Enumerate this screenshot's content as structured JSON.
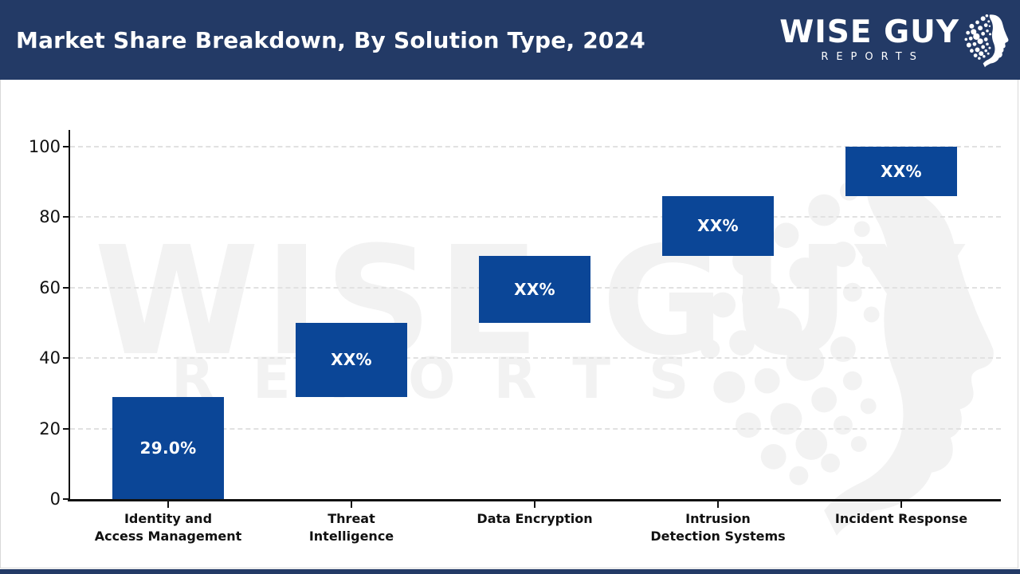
{
  "header": {
    "title": "Market Share Breakdown, By Solution Type, 2024",
    "brand": {
      "name": "WISE GUY",
      "tagline": "REPORTS"
    }
  },
  "watermark": {
    "brand": "WISE GUY",
    "tagline": "REPORTS"
  },
  "chart_data": {
    "type": "bar",
    "variant": "waterfall-cumulative",
    "title": "Market Share Breakdown, By Solution Type, 2024",
    "categories": [
      "Identity and\nAccess Management",
      "Threat\nIntelligence",
      "Data Encryption",
      "Intrusion\nDetection Systems",
      "Incident Response"
    ],
    "segments": [
      {
        "label": "29.0%",
        "start": 0,
        "end": 29
      },
      {
        "label": "XX%",
        "start": 29,
        "end": 50
      },
      {
        "label": "XX%",
        "start": 50,
        "end": 69
      },
      {
        "label": "XX%",
        "start": 69,
        "end": 86
      },
      {
        "label": "XX%",
        "start": 86,
        "end": 100
      }
    ],
    "yticks": [
      0,
      20,
      40,
      60,
      80,
      100
    ],
    "ylim": [
      0,
      105
    ],
    "xlabel": "",
    "ylabel": "",
    "grid": "horizontal-dashed",
    "legend": "none"
  },
  "colors": {
    "header_bg": "#233a66",
    "footer_bg": "#233a66",
    "bar": "#0b4697",
    "bar_label": "#ffffff",
    "axis": "#111111",
    "grid": "#e1e1e1",
    "watermark": "#f2f2f2"
  }
}
